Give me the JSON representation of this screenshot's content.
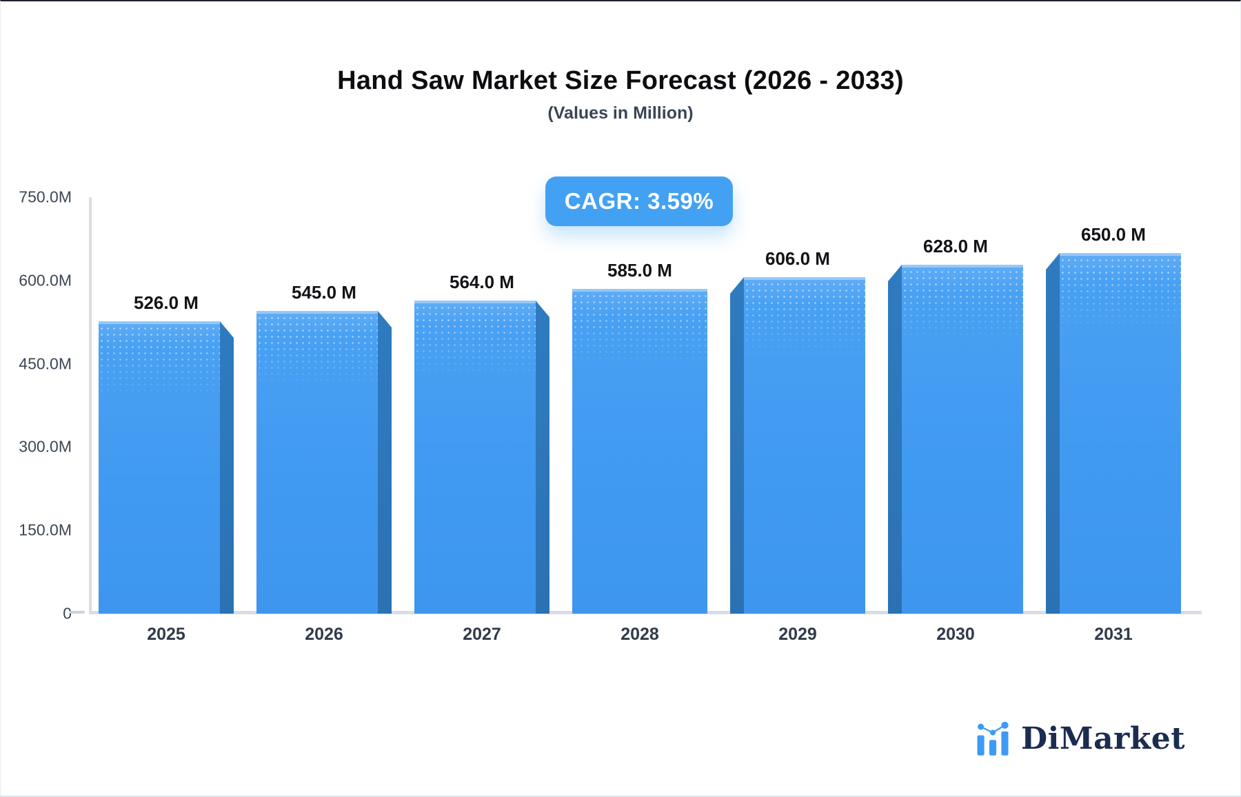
{
  "header": {
    "title": "Hand Saw Market Size Forecast (2026 - 2033)",
    "subtitle": "(Values in Million)"
  },
  "badge": {
    "label": "CAGR: 3.59%",
    "bg_color": "#43a1f4"
  },
  "chart_data": {
    "type": "bar",
    "title": "Hand Saw Market Size Forecast (2026 - 2033)",
    "subtitle": "(Values in Million)",
    "unit": "Million",
    "cagr_percent": 3.59,
    "categories": [
      "2025",
      "2026",
      "2027",
      "2028",
      "2029",
      "2030",
      "2031"
    ],
    "values": [
      526,
      545,
      564,
      585,
      606,
      628,
      650
    ],
    "value_labels": [
      "526.0 M",
      "545.0 M",
      "564.0 M",
      "585.0 M",
      "606.0 M",
      "628.0 M",
      "650.0 M"
    ],
    "yticks": [
      {
        "label": "750.0M",
        "value": 750
      },
      {
        "label": "600.0M",
        "value": 600
      },
      {
        "label": "450.0M",
        "value": 450
      },
      {
        "label": "300.0M",
        "value": 300
      },
      {
        "label": "150.0M",
        "value": 150
      },
      {
        "label": "0",
        "value": 0
      }
    ],
    "ylim": [
      0,
      750
    ],
    "grid": false,
    "legend": false,
    "bar_color": "#459ef2",
    "bar_side_color": "#2b72b4",
    "axis_color": "#d9dde3"
  },
  "footer": {
    "brand_name": "DiMarket",
    "logo_icon": "bar-chart-logo-icon",
    "logo_color": "#3d9bf5"
  }
}
